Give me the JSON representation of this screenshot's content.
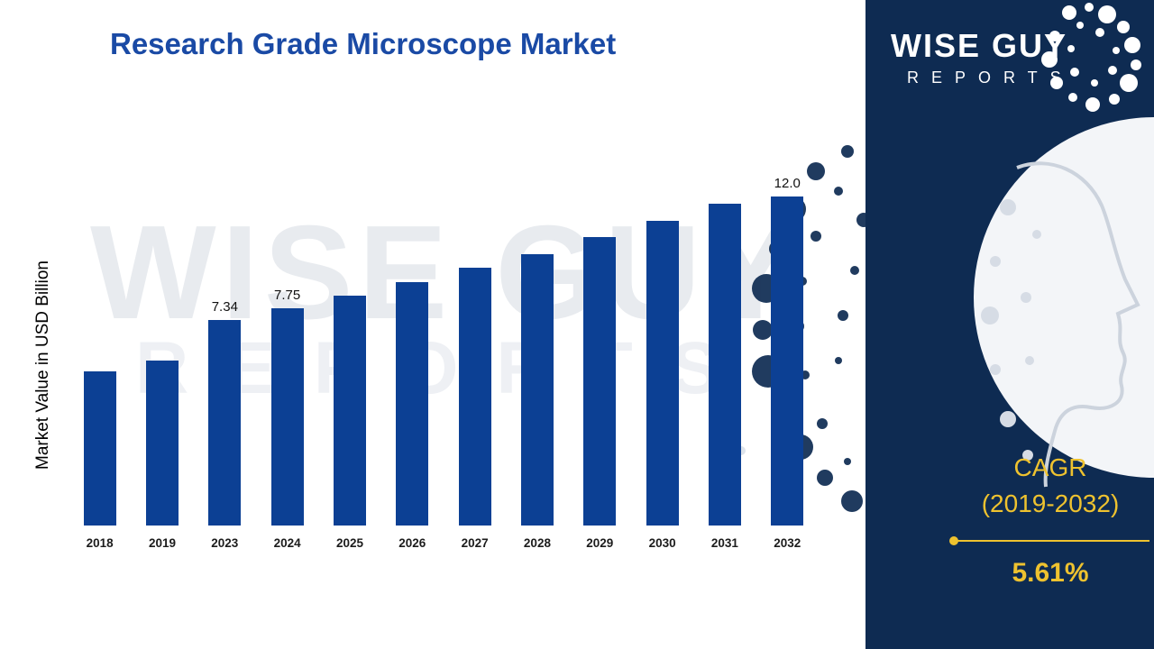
{
  "title": "Research Grade Microscope Market",
  "brand": {
    "logo_primary": "WISE GUY",
    "logo_secondary": "REPORTS",
    "watermark_line1": "WISE GUY",
    "watermark_line2": "REPORTS"
  },
  "cagr": {
    "label": "CAGR",
    "range": "(2019-2032)",
    "value": "5.61%"
  },
  "colors": {
    "bar": "#0c4094",
    "title_blue": "#1a4aa5",
    "panel_navy": "#0e2b52",
    "accent_yellow": "#eec22f",
    "watermark_gray": "#e8ebef"
  },
  "chart_data": {
    "type": "bar",
    "title": "Research Grade Microscope Market",
    "ylabel": "Market Value in USD Billion",
    "xlabel": "",
    "categories": [
      "2018",
      "2019",
      "2023",
      "2024",
      "2025",
      "2026",
      "2027",
      "2028",
      "2029",
      "2030",
      "2031",
      "2032"
    ],
    "values": [
      5.5,
      5.9,
      7.34,
      7.75,
      8.2,
      8.7,
      9.2,
      9.7,
      10.3,
      10.9,
      11.5,
      12.0
    ],
    "bar_labels": [
      "",
      "",
      "7.34",
      "7.75",
      "",
      "",
      "",
      "",
      "",
      "",
      "",
      "12.0"
    ],
    "ylim": [
      0,
      12.5
    ],
    "grid": false,
    "legend": "none"
  }
}
